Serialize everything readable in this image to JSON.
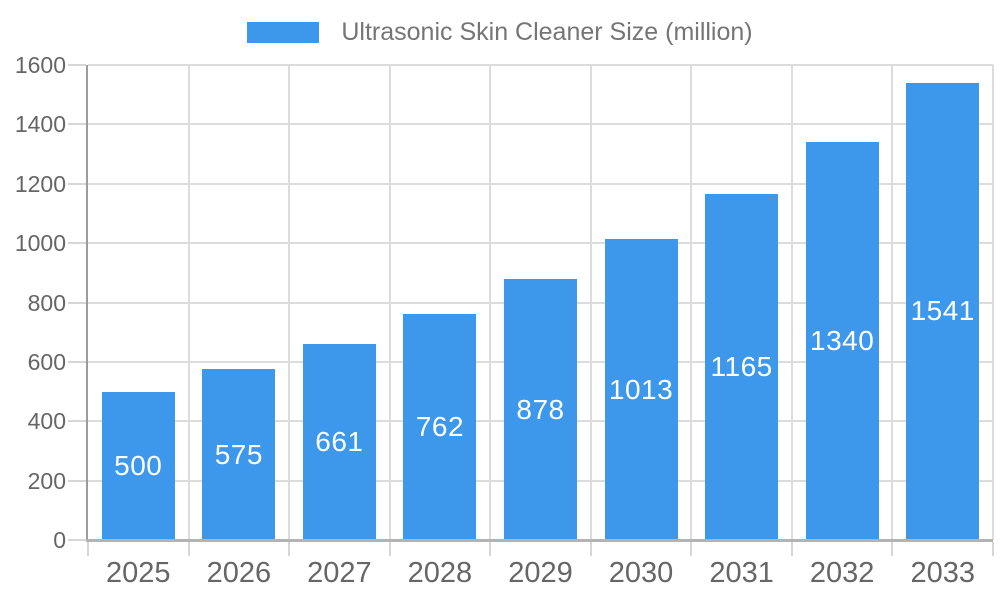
{
  "chart_data": {
    "type": "bar",
    "title": "Ultrasonic Skin Cleaner Size (million)",
    "legend_entries": [
      "Ultrasonic Skin Cleaner Size (million)"
    ],
    "legend_position": "top",
    "categories": [
      "2025",
      "2026",
      "2027",
      "2028",
      "2029",
      "2030",
      "2031",
      "2032",
      "2033"
    ],
    "values": [
      500,
      575,
      661,
      762,
      878,
      1013,
      1165,
      1340,
      1541
    ],
    "value_labels_shown": true,
    "xlabel": "",
    "ylabel": "",
    "ylim": [
      0,
      1600
    ],
    "yticks": [
      "0",
      "200",
      "400",
      "600",
      "800",
      "1000",
      "1200",
      "1400",
      "1600"
    ],
    "grid": true,
    "colors": {
      "bar": "#3D98EB",
      "grid": "#DCDCDC",
      "tick": "#D6D6D6",
      "axis_y": "#9C9C9C",
      "axis_x": "#B3B3B3",
      "axis_text": "#666666",
      "legend_text": "#757575",
      "value_label": "#FFFFFF",
      "background": "#FFFFFF"
    }
  }
}
